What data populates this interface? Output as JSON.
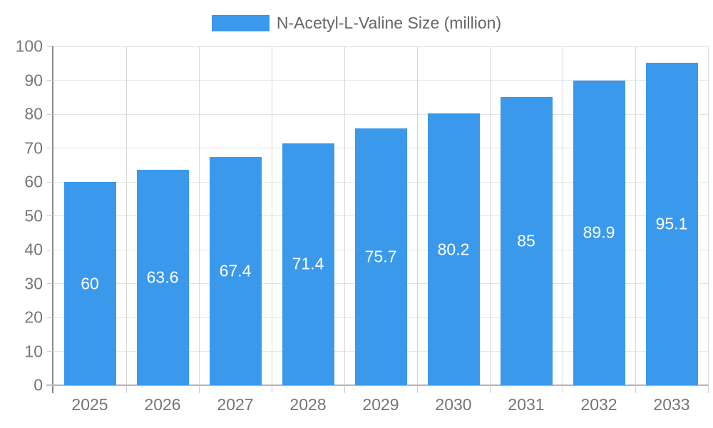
{
  "colors": {
    "bar": "#3b99ec",
    "bar_label_text": "#ffffff",
    "axis_label_text": "#757575",
    "legend_text": "#666666",
    "grid_horizontal": "#e4e4e4",
    "grid_vertical": "#d9d9d9",
    "y_axis_line": "#8a8a8a",
    "x_axis_line": "#b5b5b5"
  },
  "legend": {
    "label": "N-Acetyl-L-Valine Size (million)"
  },
  "chart_data": {
    "type": "bar",
    "title": "N-Acetyl-L-Valine Size (million)",
    "categories": [
      "2025",
      "2026",
      "2027",
      "2028",
      "2029",
      "2030",
      "2031",
      "2032",
      "2033"
    ],
    "values": [
      60,
      63.6,
      67.4,
      71.4,
      75.7,
      80.2,
      85,
      89.9,
      95.1
    ],
    "bar_labels": [
      "60",
      "63.6",
      "67.4",
      "71.4",
      "75.7",
      "80.2",
      "85",
      "89.9",
      "95.1"
    ],
    "xlabel": "",
    "ylabel": "",
    "ylim": [
      0,
      100
    ],
    "ytick_interval": 10,
    "ytick_labels": [
      "0",
      "10",
      "20",
      "30",
      "40",
      "50",
      "60",
      "70",
      "80",
      "90",
      "100"
    ],
    "grid": true,
    "legend_position": "top",
    "bar_label_position": "inside-center"
  }
}
